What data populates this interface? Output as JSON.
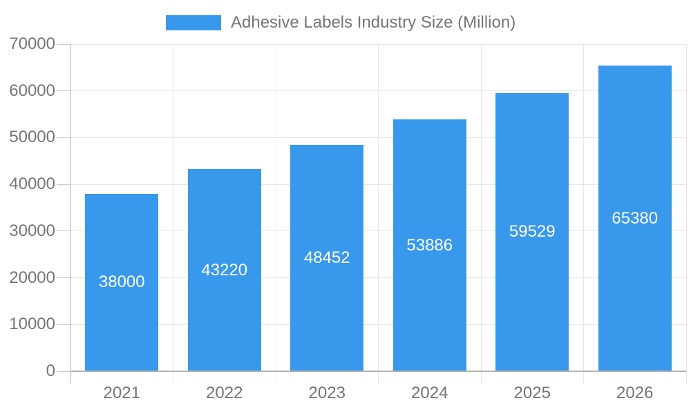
{
  "chart_data": {
    "type": "bar",
    "title": "Adhesive Labels Industry Size (Million)",
    "categories": [
      "2021",
      "2022",
      "2023",
      "2024",
      "2025",
      "2026"
    ],
    "values": [
      38000,
      43220,
      48452,
      53886,
      59529,
      65380
    ],
    "bar_labels": [
      "38000",
      "43220",
      "48452",
      "53886",
      "59529",
      "65380"
    ],
    "xlabel": "",
    "ylabel": "",
    "ylim": [
      0,
      70000
    ],
    "yticks": [
      0,
      10000,
      20000,
      30000,
      40000,
      50000,
      60000,
      70000
    ],
    "grid": true,
    "legend_position": "top",
    "colors": {
      "bar": "#3899EC",
      "bar_label_text": "#FFFFFF",
      "axis_text": "#757575",
      "grid_line": "#E6E6E6",
      "axis_line": "#B3B3B3",
      "tick_dash": "#CCCCCC",
      "background": "#FFFFFF"
    }
  }
}
